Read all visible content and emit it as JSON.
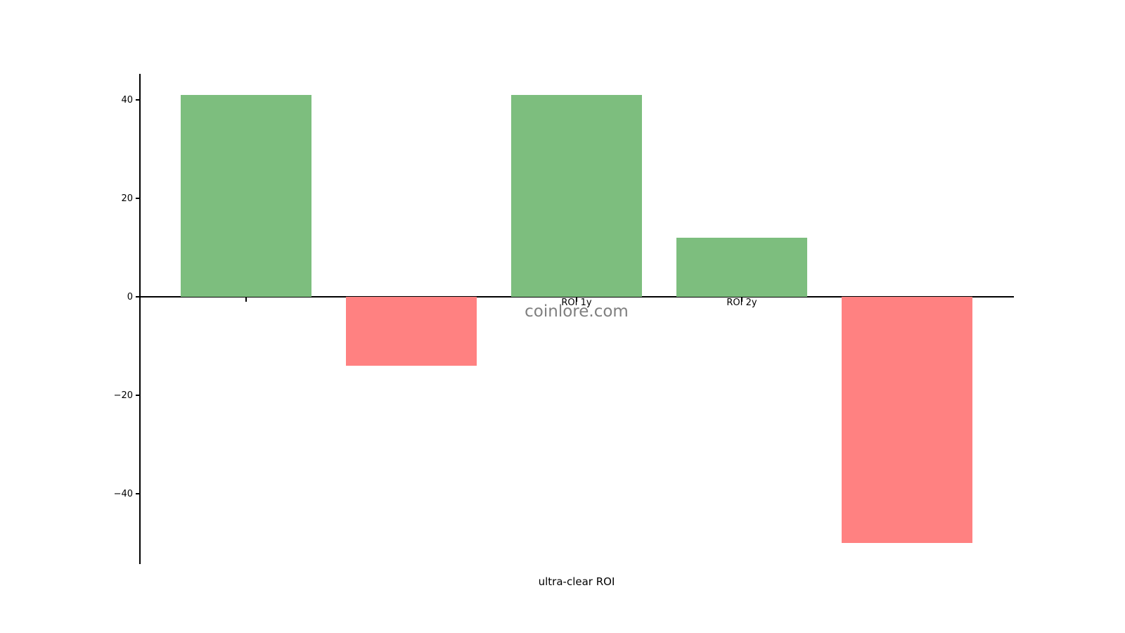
{
  "chart_data": {
    "type": "bar",
    "title": "ultra-clear ROI",
    "watermark": "coinlore.com",
    "categories": [
      "",
      "",
      "ROI 1y",
      "ROI 2y",
      ""
    ],
    "values": [
      41,
      -14,
      41,
      12,
      -50
    ],
    "yticks": [
      40,
      20,
      0,
      -20,
      -40
    ],
    "ylim": [
      -54,
      45
    ],
    "xlabel": "",
    "ylabel": "",
    "grid": false,
    "legend": null,
    "colors": {
      "positive_bar": "#7dbe7e",
      "negative_bar": "#ff8181",
      "axis": "#000000",
      "watermark_text": "#7f7f7f",
      "background": "#ffffff"
    }
  }
}
